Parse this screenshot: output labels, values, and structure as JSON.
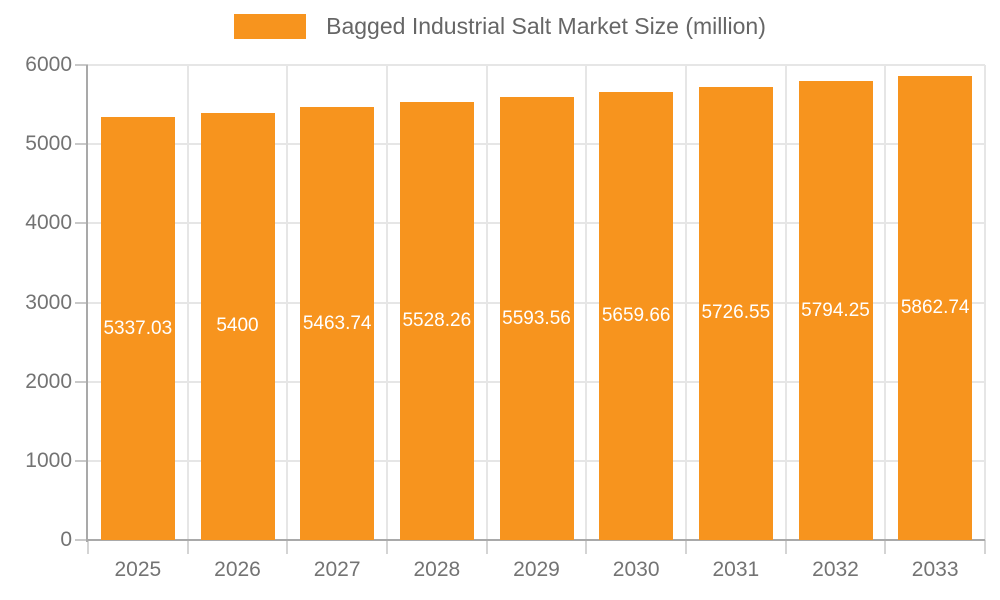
{
  "legend": {
    "label": "Bagged Industrial Salt Market Size (million)"
  },
  "chart_data": {
    "type": "bar",
    "title": "Bagged Industrial Salt Market Size (million)",
    "categories": [
      "2025",
      "2026",
      "2027",
      "2028",
      "2029",
      "2030",
      "2031",
      "2032",
      "2033"
    ],
    "values": [
      5337.03,
      5400,
      5463.74,
      5528.26,
      5593.56,
      5659.66,
      5726.55,
      5794.25,
      5862.74
    ],
    "value_labels": [
      "5337.03",
      "5400",
      "5463.74",
      "5528.26",
      "5593.56",
      "5659.66",
      "5726.55",
      "5794.25",
      "5862.74"
    ],
    "xlabel": "",
    "ylabel": "",
    "ylim": [
      0,
      6000
    ],
    "ytick_interval": 1000,
    "ytick_labels": [
      "0",
      "1000",
      "2000",
      "3000",
      "4000",
      "5000",
      "6000"
    ],
    "grid": true,
    "legend_position": "top"
  },
  "colors": {
    "bar": "#F7941E",
    "value_label_text": "#FFFFFF",
    "axis_label_text": "#737373",
    "legend_text": "#666666",
    "gridline": "#E6E6E6",
    "axis_line": "#A9A9A9"
  }
}
